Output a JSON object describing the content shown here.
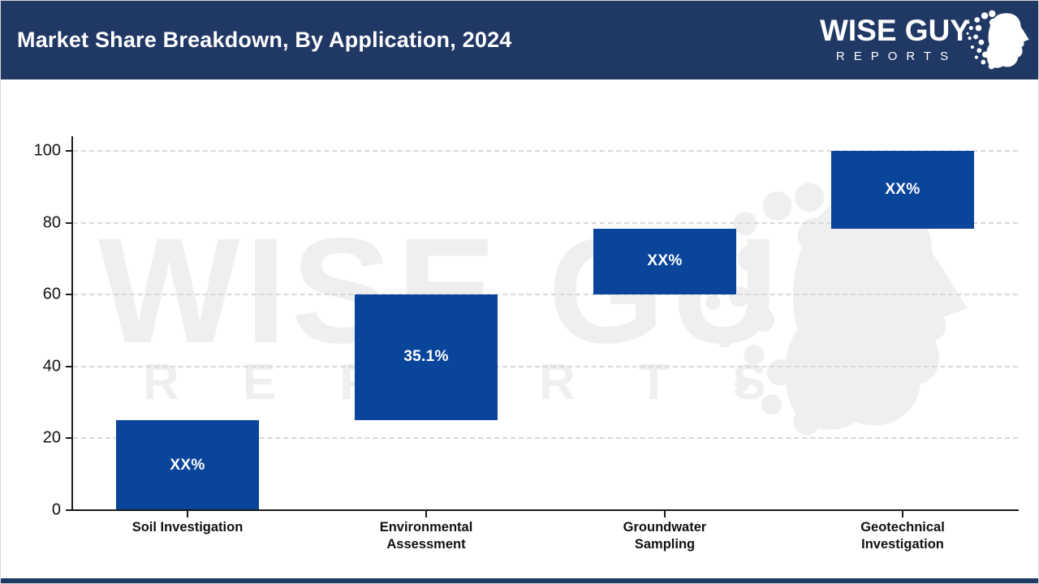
{
  "header": {
    "title": "Market Share Breakdown, By Application, 2024"
  },
  "logo": {
    "line1": "WISE GUY",
    "line2": "REPORTS"
  },
  "watermark": {
    "line1": "WISE GU",
    "line2": "REPORTS"
  },
  "colors": {
    "header_bg": "#1f3864",
    "bar": "#0a459c",
    "grid": "#d8d8d8",
    "axis": "#1a1a1a",
    "watermark": "#efefef",
    "bar_label": "#ffffff"
  },
  "chart_data": {
    "type": "bar",
    "subtype": "waterfall",
    "title": "Market Share Breakdown, By Application, 2024",
    "categories": [
      "Soil Investigation",
      "Environmental\nAssessment",
      "Groundwater\nSampling",
      "Geotechnical\nInvestigation"
    ],
    "segments": [
      {
        "category": "Soil Investigation",
        "label": "XX%",
        "start": 0,
        "end": 25
      },
      {
        "category": "Environmental Assessment",
        "label": "35.1%",
        "start": 25,
        "end": 60.1
      },
      {
        "category": "Groundwater Sampling",
        "label": "XX%",
        "start": 60.1,
        "end": 78.3
      },
      {
        "category": "Geotechnical Investigation",
        "label": "XX%",
        "start": 78.3,
        "end": 100
      }
    ],
    "yticks": [
      0,
      20,
      40,
      60,
      80,
      100
    ],
    "ylim": [
      0,
      105
    ],
    "xlabel": "",
    "ylabel": "",
    "grid": "dashed-horizontal",
    "legend": "none",
    "bar_color": "#0a459c"
  }
}
